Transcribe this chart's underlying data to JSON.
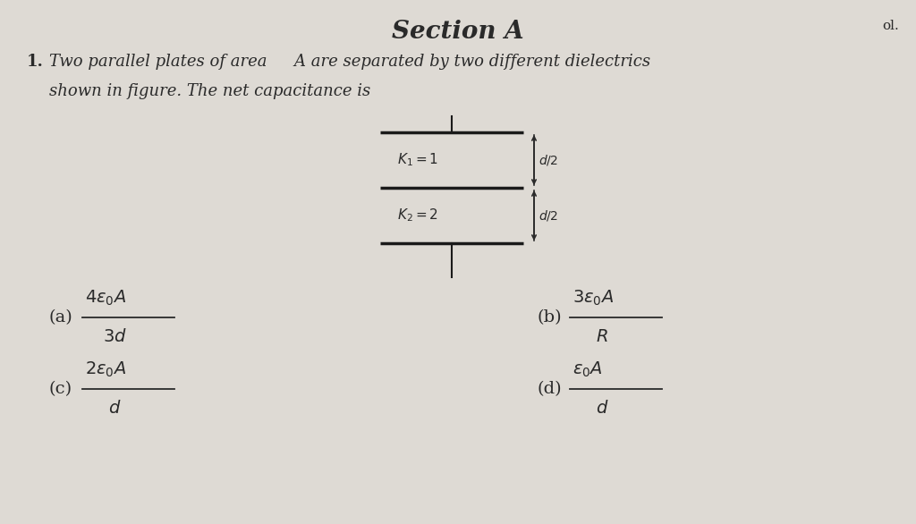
{
  "title": "Section A",
  "title_fontsize": 20,
  "bg_color": "#dedad4",
  "text_color": "#2a2a2a",
  "plate_color": "#1a1a1a",
  "corner_text": "ol.",
  "question_line1a": "Two parallel plates of area ",
  "question_line1b": "A",
  "question_line1c": " are separated by two different dielectrics",
  "question_line2": "shown in figure. The net capacitance is",
  "K1_text": "$K_1 = 1$",
  "K2_text": "$K_2 = 2$",
  "d2_text": "$d/2$",
  "opt_a_label": "(a)",
  "opt_a_num": "$4\\varepsilon_0 A$",
  "opt_a_den": "$3d$",
  "opt_b_label": "(b)",
  "opt_b_num": "$3\\varepsilon_0 A$",
  "opt_b_den": "$R$",
  "opt_c_label": "(c)",
  "opt_c_num": "$2\\varepsilon_0 A$",
  "opt_c_den": "$d$",
  "opt_d_label": "(d)",
  "opt_d_num": "$\\varepsilon_0 A$",
  "opt_d_den": "$d$"
}
